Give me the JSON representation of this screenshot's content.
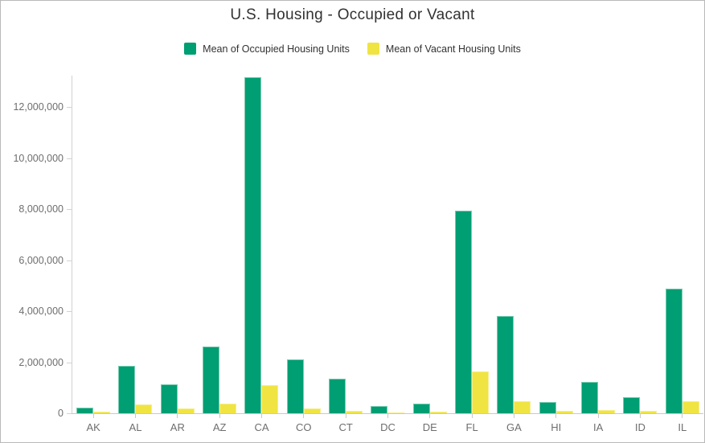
{
  "window": {
    "background": "#ffffff",
    "border_color": "#b9b9b9"
  },
  "chart_data": {
    "type": "bar",
    "title": "U.S. Housing - Occupied or Vacant",
    "xlabel": "",
    "ylabel": "",
    "categories": [
      "AK",
      "AL",
      "AR",
      "AZ",
      "CA",
      "CO",
      "CT",
      "DC",
      "DE",
      "FL",
      "GA",
      "HI",
      "IA",
      "ID",
      "IL"
    ],
    "series": [
      {
        "name": "Mean of Occupied Housing Units",
        "color": "#009E73",
        "values": [
          230000,
          1860000,
          1140000,
          2620000,
          13180000,
          2110000,
          1350000,
          280000,
          380000,
          7930000,
          3820000,
          440000,
          1240000,
          640000,
          4870000
        ]
      },
      {
        "name": "Mean of Vacant Housing Units",
        "color": "#F0E442",
        "values": [
          70000,
          350000,
          190000,
          370000,
          1110000,
          180000,
          100000,
          35000,
          60000,
          1640000,
          480000,
          80000,
          135000,
          80000,
          480000
        ]
      }
    ],
    "ylim": [
      0,
      13200000
    ],
    "y_tick_values": [
      0,
      2000000,
      4000000,
      6000000,
      8000000,
      10000000,
      12000000
    ],
    "y_tick_labels": [
      "0",
      "2,000,000",
      "4,000,000",
      "6,000,000",
      "8,000,000",
      "10,000,000",
      "12,000,000"
    ],
    "grid": false,
    "legend_position": "top",
    "colors": {
      "axis_line": "#d2d2d2",
      "tick_label": "#6e6e6e",
      "title_text": "#323232",
      "legend_text": "#323232"
    }
  }
}
